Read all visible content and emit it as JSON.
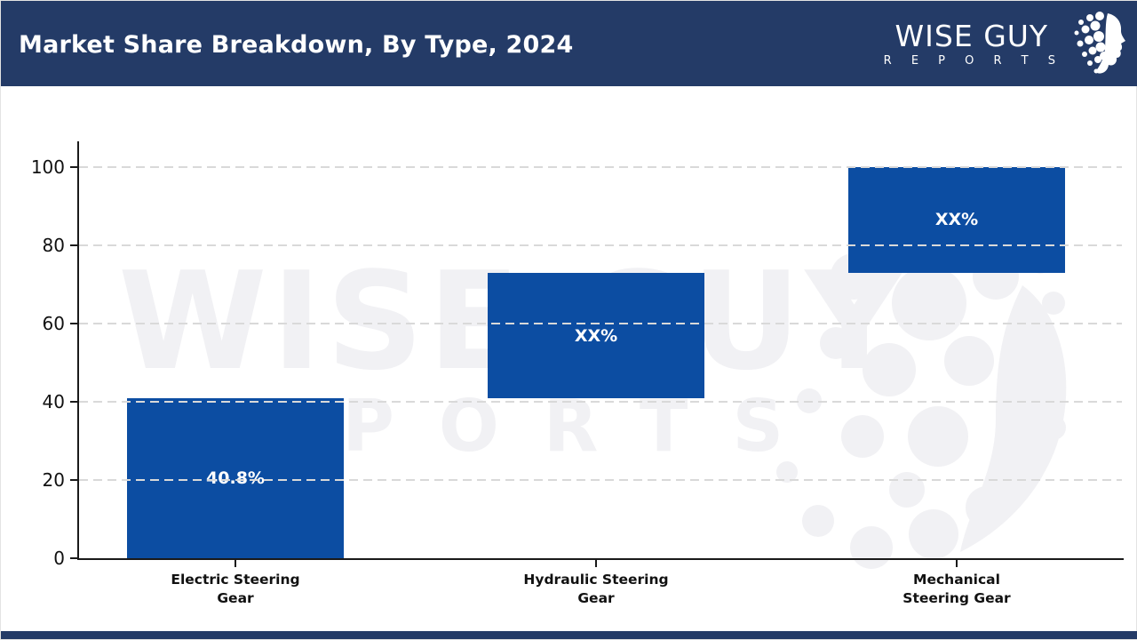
{
  "header": {
    "title": "Market Share Breakdown, By Type, 2024"
  },
  "logo": {
    "line1": "WISE GUY",
    "line2": "R E P O R T S"
  },
  "watermark": {
    "line1": "WISE GUY",
    "line2": "REPORTS"
  },
  "chart_data": {
    "type": "bar",
    "subtype": "floating-stacked-progression",
    "title": "Market Share Breakdown, By Type, 2024",
    "categories": [
      [
        "Electric Steering",
        "Gear"
      ],
      [
        "Hydraulic Steering",
        "Gear"
      ],
      [
        "Mechanical",
        "Steering Gear"
      ]
    ],
    "segments": [
      {
        "category": "Electric Steering Gear",
        "start": 0,
        "end": 40.8,
        "label": "40.8%"
      },
      {
        "category": "Hydraulic Steering Gear",
        "start": 40.8,
        "end": 73,
        "label": "XX%"
      },
      {
        "category": "Mechanical Steering Gear",
        "start": 73,
        "end": 100,
        "label": "XX%"
      }
    ],
    "ylim": [
      0,
      100
    ],
    "yticks": [
      0,
      20,
      40,
      60,
      80,
      100
    ],
    "xlabel": "",
    "ylabel": "",
    "grid": "horizontal-dashed",
    "legend": "none",
    "bar_color": "#0C4DA2",
    "bar_label_color": "#ffffff"
  },
  "colors": {
    "header_bg": "#243B67",
    "footer_bg": "#243B67",
    "bar": "#0C4DA2",
    "grid": "#d9d9d9",
    "axis": "#1a1a1a",
    "watermark": "#f1f1f4"
  }
}
